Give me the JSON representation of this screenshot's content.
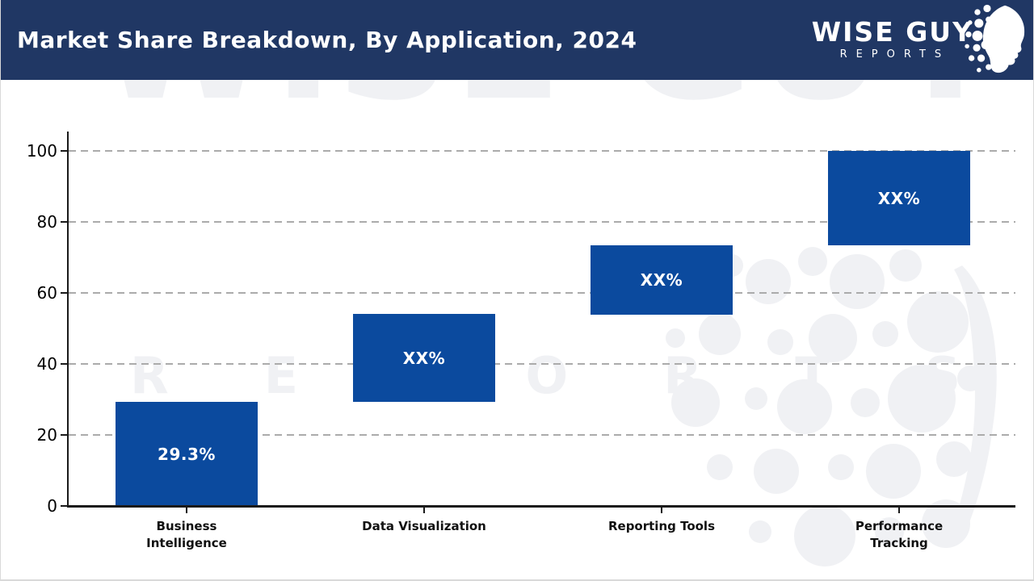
{
  "header": {
    "title": "Market Share Breakdown, By Application, 2024",
    "logo": {
      "line1": "WISE GUY",
      "line2": "REPORTS"
    }
  },
  "watermark": {
    "line1": "WISE GUY",
    "line2": "REPORTS"
  },
  "colors": {
    "header_bg": "#203764",
    "bar_fill": "#0b4a9e",
    "value_label": "#ffffff",
    "watermark": "#f0f1f4",
    "gridline": "#ababab",
    "axis": "#1a1a1a"
  },
  "chart_data": {
    "type": "bar",
    "subtype": "waterfall",
    "title": "Market Share Breakdown, By Application, 2024",
    "xlabel": "",
    "ylabel": "",
    "ylim": [
      0,
      100
    ],
    "yticks": [
      0,
      20,
      40,
      60,
      80,
      100
    ],
    "grid": "horizontal-dashed",
    "legend": "none",
    "categories": [
      "Business Intelligence",
      "Data Visualization",
      "Reporting Tools",
      "Performance Tracking"
    ],
    "segments": [
      {
        "category_lines": [
          "Business",
          "Intelligence"
        ],
        "start": 0,
        "end": 29.3,
        "value_label": "29.3%"
      },
      {
        "category_lines": [
          "Data Visualization"
        ],
        "start": 29.3,
        "end": 54,
        "value_label": "XX%"
      },
      {
        "category_lines": [
          "Reporting Tools"
        ],
        "start": 54,
        "end": 73.5,
        "value_label": "XX%"
      },
      {
        "category_lines": [
          "Performance",
          "Tracking"
        ],
        "start": 73.5,
        "end": 100,
        "value_label": "XX%"
      }
    ]
  }
}
